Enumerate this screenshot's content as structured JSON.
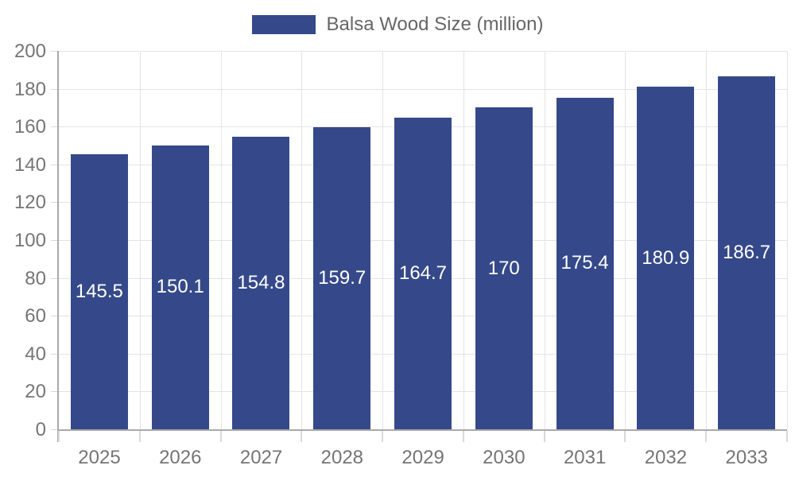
{
  "chart_data": {
    "type": "bar",
    "legend": "Balsa Wood Size (million)",
    "legend_position": "top",
    "categories": [
      "2025",
      "2026",
      "2027",
      "2028",
      "2029",
      "2030",
      "2031",
      "2032",
      "2033"
    ],
    "series": [
      {
        "name": "Balsa Wood Size (million)",
        "values": [
          145.5,
          150.1,
          154.8,
          159.7,
          164.7,
          170,
          175.4,
          180.9,
          186.7
        ],
        "labels": [
          "145.5",
          "150.1",
          "154.8",
          "159.7",
          "164.7",
          "170",
          "175.4",
          "180.9",
          "186.7"
        ]
      }
    ],
    "title": "",
    "xlabel": "",
    "ylabel": "",
    "ylim": [
      0,
      200
    ],
    "ytick_step": 20,
    "grid": true,
    "colors": {
      "bar": "#35498A",
      "grid": "#E4E4E4",
      "axis": "#A9A9A9",
      "tick": "#D9D9D9",
      "axis_label": "#757575",
      "legend_text": "#666666",
      "value_label": "#FFFFFF",
      "background": "#FFFFFF"
    }
  }
}
